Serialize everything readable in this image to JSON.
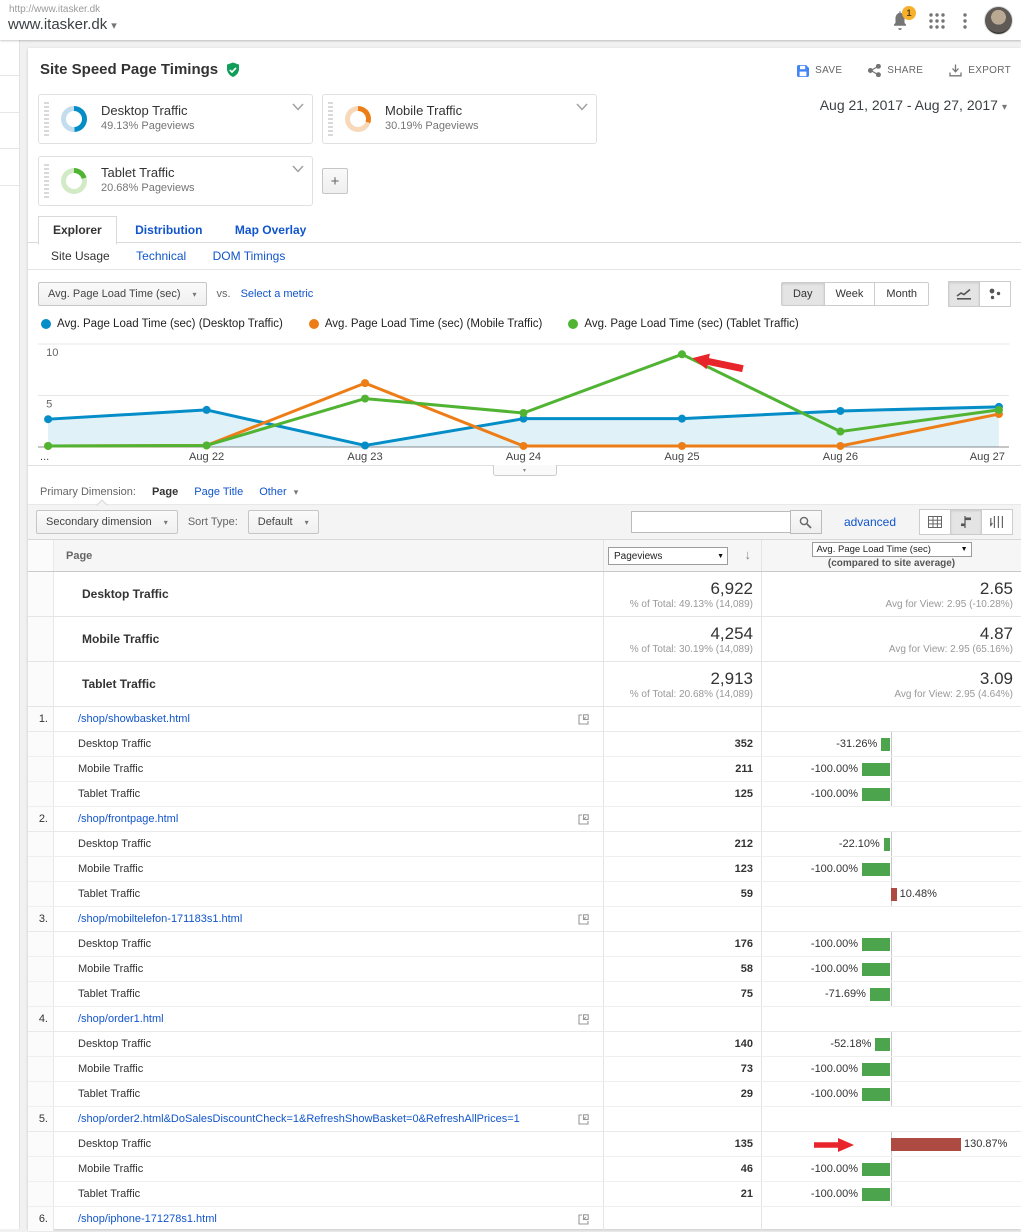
{
  "topbar": {
    "url": "http://www.itasker.dk",
    "account_name": "www.itasker.dk",
    "notification_count": "1"
  },
  "header": {
    "title": "Site Speed Page Timings",
    "actions": {
      "save": "SAVE",
      "share": "SHARE",
      "export": "EXPORT"
    },
    "date_range": "Aug 21, 2017 - Aug 27, 2017"
  },
  "segments": [
    {
      "name": "Desktop Traffic",
      "detail": "49.13% Pageviews",
      "pct": 49.13,
      "color": "#058dc7",
      "track": "#c3dcee"
    },
    {
      "name": "Mobile Traffic",
      "detail": "30.19% Pageviews",
      "pct": 30.19,
      "color": "#ed7e17",
      "track": "#f7d9ba"
    },
    {
      "name": "Tablet Traffic",
      "detail": "20.68% Pageviews",
      "pct": 20.68,
      "color": "#50b432",
      "track": "#d2eac6"
    }
  ],
  "add_segment_label": "+",
  "tabs": {
    "items": [
      "Explorer",
      "Distribution",
      "Map Overlay"
    ],
    "active": "Explorer"
  },
  "subtabs": {
    "items": [
      "Site Usage",
      "Technical",
      "DOM Timings"
    ],
    "active": "Site Usage"
  },
  "metric_bar": {
    "metric_dropdown": "Avg. Page Load Time (sec)",
    "vs_label": "vs.",
    "select_metric": "Select a metric",
    "granularity": [
      "Day",
      "Week",
      "Month"
    ],
    "active_granularity": "Day"
  },
  "chart_data": {
    "type": "line",
    "x": [
      "...",
      "Aug 22",
      "Aug 23",
      "Aug 24",
      "Aug 25",
      "Aug 26",
      "Aug 27"
    ],
    "ylim": [
      0,
      10
    ],
    "yticks": [
      5,
      10
    ],
    "grid": true,
    "legend_position": "top-left",
    "series": [
      {
        "name": "Avg. Page Load Time (sec) (Desktop Traffic)",
        "color": "#058dc7",
        "area": true,
        "values": [
          2.7,
          3.6,
          0.15,
          2.75,
          2.75,
          3.5,
          3.9
        ]
      },
      {
        "name": "Avg. Page Load Time (sec) (Mobile Traffic)",
        "color": "#ed7e17",
        "area": false,
        "values": [
          0.1,
          0.15,
          6.2,
          0.1,
          0.1,
          0.1,
          3.2
        ]
      },
      {
        "name": "Avg. Page Load Time (sec) (Tablet Traffic)",
        "color": "#50b432",
        "area": false,
        "values": [
          0.1,
          0.15,
          4.7,
          3.3,
          9.0,
          1.5,
          3.6
        ]
      }
    ],
    "annotation": {
      "type": "arrow",
      "series_index": 2,
      "x_index": 4
    }
  },
  "primary_dimension": {
    "label": "Primary Dimension:",
    "options": [
      "Page",
      "Page Title",
      "Other"
    ],
    "active": "Page"
  },
  "toolbar": {
    "secondary_dimension": "Secondary dimension",
    "sort_type_label": "Sort Type:",
    "sort_type_value": "Default",
    "search_value": "",
    "search_placeholder": "",
    "advanced_label": "advanced"
  },
  "table": {
    "columns": {
      "page": "Page",
      "pageviews": "Pageviews",
      "metric": "Avg. Page Load Time (sec)",
      "metric_note": "(compared to site average)"
    },
    "summary_rows": [
      {
        "label": "Desktop Traffic",
        "pageviews": "6,922",
        "pageviews_sub": "% of Total: 49.13% (14,089)",
        "value": "2.65",
        "value_sub": "Avg for View: 2.95 (-10.28%)"
      },
      {
        "label": "Mobile Traffic",
        "pageviews": "4,254",
        "pageviews_sub": "% of Total: 30.19% (14,089)",
        "value": "4.87",
        "value_sub": "Avg for View: 2.95 (65.16%)"
      },
      {
        "label": "Tablet Traffic",
        "pageviews": "2,913",
        "pageviews_sub": "% of Total: 20.68% (14,089)",
        "value": "3.09",
        "value_sub": "Avg for View: 2.95 (4.64%)"
      }
    ],
    "groups": [
      {
        "index": "1.",
        "url": "/shop/showbasket.html",
        "rows": [
          {
            "label": "Desktop Traffic",
            "pageviews": "352",
            "delta_label": "-31.26%",
            "delta": -31.26
          },
          {
            "label": "Mobile Traffic",
            "pageviews": "211",
            "delta_label": "-100.00%",
            "delta": -100
          },
          {
            "label": "Tablet Traffic",
            "pageviews": "125",
            "delta_label": "-100.00%",
            "delta": -100
          }
        ]
      },
      {
        "index": "2.",
        "url": "/shop/frontpage.html",
        "rows": [
          {
            "label": "Desktop Traffic",
            "pageviews": "212",
            "delta_label": "-22.10%",
            "delta": -22.1
          },
          {
            "label": "Mobile Traffic",
            "pageviews": "123",
            "delta_label": "-100.00%",
            "delta": -100
          },
          {
            "label": "Tablet Traffic",
            "pageviews": "59",
            "delta_label": "10.48%",
            "delta": 10.48
          }
        ]
      },
      {
        "index": "3.",
        "url": "/shop/mobiltelefon-171183s1.html",
        "rows": [
          {
            "label": "Desktop Traffic",
            "pageviews": "176",
            "delta_label": "-100.00%",
            "delta": -100
          },
          {
            "label": "Mobile Traffic",
            "pageviews": "58",
            "delta_label": "-100.00%",
            "delta": -100
          },
          {
            "label": "Tablet Traffic",
            "pageviews": "75",
            "delta_label": "-71.69%",
            "delta": -71.69
          }
        ]
      },
      {
        "index": "4.",
        "url": "/shop/order1.html",
        "rows": [
          {
            "label": "Desktop Traffic",
            "pageviews": "140",
            "delta_label": "-52.18%",
            "delta": -52.18
          },
          {
            "label": "Mobile Traffic",
            "pageviews": "73",
            "delta_label": "-100.00%",
            "delta": -100
          },
          {
            "label": "Tablet Traffic",
            "pageviews": "29",
            "delta_label": "-100.00%",
            "delta": -100
          }
        ]
      },
      {
        "index": "5.",
        "url": "/shop/order2.html&DoSalesDiscountCheck=1&RefreshShowBasket=0&RefreshAllPrices=1",
        "rows": [
          {
            "label": "Desktop Traffic",
            "pageviews": "135",
            "delta_label": "130.87%",
            "delta": 130.87,
            "arrow": true
          },
          {
            "label": "Mobile Traffic",
            "pageviews": "46",
            "delta_label": "-100.00%",
            "delta": -100
          },
          {
            "label": "Tablet Traffic",
            "pageviews": "21",
            "delta_label": "-100.00%",
            "delta": -100
          }
        ]
      },
      {
        "index": "6.",
        "url": "/shop/iphone-171278s1.html",
        "rows": []
      }
    ]
  },
  "icons": {
    "caret_down": "▾",
    "select_caret": "▼",
    "sort_desc": "↓",
    "handle_caret": "▾",
    "add": "+"
  },
  "colors": {
    "bar_negative": "#4ca54c",
    "bar_positive": "#ad4a41",
    "annotation_arrow": "#e8252a",
    "link": "#1155cc",
    "notification_badge": "#f6b02c"
  }
}
